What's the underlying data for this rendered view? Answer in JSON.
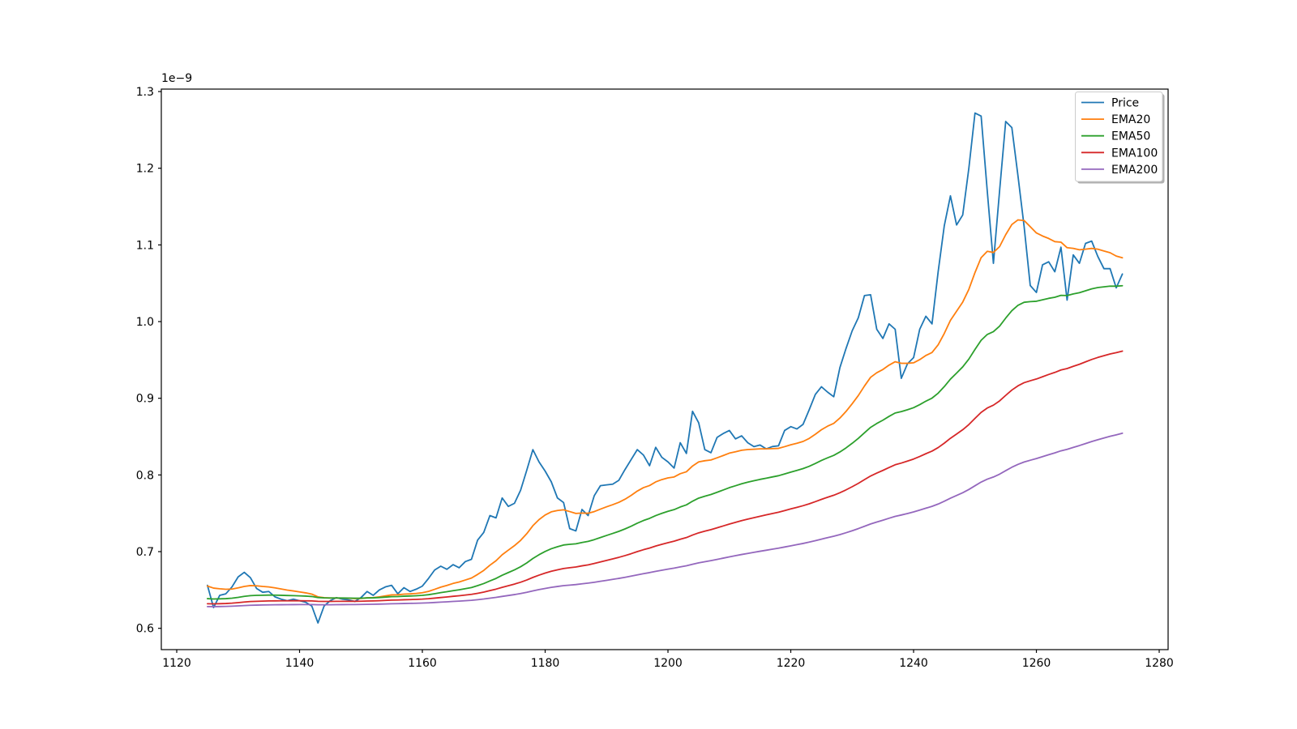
{
  "figure": {
    "background": "#ffffff",
    "offset_label": "1e−9"
  },
  "chart_data": {
    "type": "line",
    "title": "",
    "xlabel": "",
    "ylabel": "",
    "grid": false,
    "legend_position": "upper right",
    "legend_entries": [
      "Price",
      "EMA20",
      "EMA50",
      "EMA100",
      "EMA200"
    ],
    "y_scale_offset_text": "1e−9",
    "xlim": [
      1117.49,
      1281.45
    ],
    "ylim": [
      0.5722,
      1.3032
    ],
    "x_ticks": [
      1120,
      1140,
      1160,
      1180,
      1200,
      1220,
      1240,
      1260,
      1280
    ],
    "y_ticks": [
      0.6,
      0.7,
      0.8,
      0.9,
      1.0,
      1.1,
      1.2,
      1.3
    ],
    "x_start": 1125,
    "x_step": 1,
    "series": [
      {
        "name": "Price",
        "color": "#1f77b4",
        "kind": "data",
        "values": [
          0.656,
          0.627,
          0.643,
          0.645,
          0.654,
          0.667,
          0.673,
          0.666,
          0.652,
          0.647,
          0.648,
          0.641,
          0.638,
          0.636,
          0.638,
          0.636,
          0.634,
          0.629,
          0.607,
          0.629,
          0.636,
          0.64,
          0.638,
          0.637,
          0.635,
          0.64,
          0.648,
          0.643,
          0.65,
          0.654,
          0.656,
          0.645,
          0.653,
          0.648,
          0.651,
          0.655,
          0.665,
          0.676,
          0.681,
          0.677,
          0.683,
          0.679,
          0.687,
          0.69,
          0.715,
          0.725,
          0.747,
          0.744,
          0.77,
          0.759,
          0.763,
          0.78,
          0.806,
          0.833,
          0.817,
          0.805,
          0.791,
          0.77,
          0.764,
          0.73,
          0.727,
          0.755,
          0.747,
          0.773,
          0.786,
          0.787,
          0.788,
          0.793,
          0.807,
          0.82,
          0.833,
          0.826,
          0.812,
          0.836,
          0.823,
          0.817,
          0.809,
          0.842,
          0.828,
          0.883,
          0.868,
          0.833,
          0.829,
          0.849,
          0.854,
          0.858,
          0.847,
          0.851,
          0.842,
          0.837,
          0.839,
          0.834,
          0.837,
          0.838,
          0.858,
          0.863,
          0.86,
          0.866,
          0.885,
          0.905,
          0.915,
          0.908,
          0.902,
          0.94,
          0.965,
          0.988,
          1.005,
          1.034,
          1.035,
          0.99,
          0.978,
          0.997,
          0.99,
          0.926,
          0.945,
          0.953,
          0.99,
          1.007,
          0.997,
          1.065,
          1.125,
          1.164,
          1.126,
          1.139,
          1.2,
          1.272,
          1.268,
          1.17,
          1.076,
          1.17,
          1.261,
          1.253,
          1.19,
          1.124,
          1.047,
          1.038,
          1.074,
          1.078,
          1.065,
          1.097,
          1.028,
          1.087,
          1.076,
          1.102,
          1.105,
          1.085,
          1.069,
          1.069,
          1.044,
          1.062
        ]
      },
      {
        "name": "EMA20",
        "color": "#ff7f0e",
        "kind": "ema",
        "period": 20,
        "seed": 0.655
      },
      {
        "name": "EMA50",
        "color": "#2ca02c",
        "kind": "ema",
        "period": 50,
        "seed": 0.638
      },
      {
        "name": "EMA100",
        "color": "#d62728",
        "kind": "ema",
        "period": 100,
        "seed": 0.6315
      },
      {
        "name": "EMA200",
        "color": "#9467bd",
        "kind": "ema",
        "period": 200,
        "seed": 0.628
      }
    ]
  }
}
